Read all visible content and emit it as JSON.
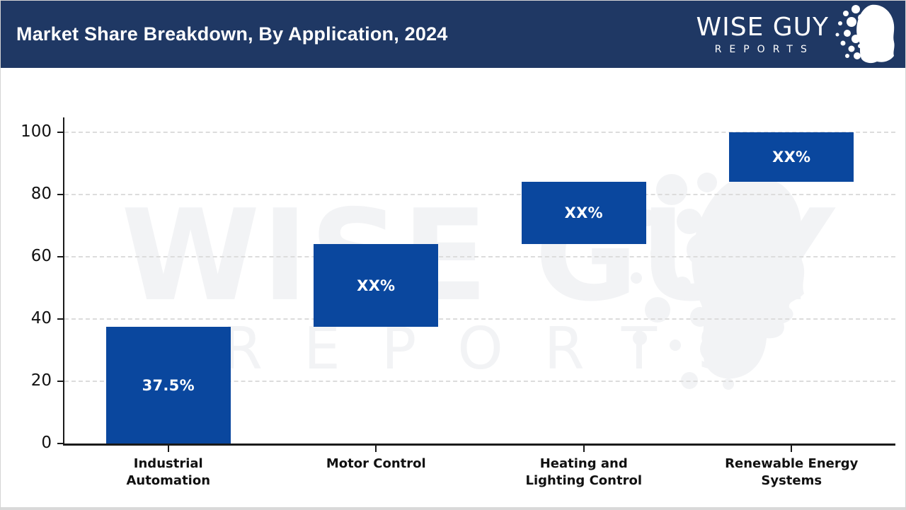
{
  "header": {
    "title": "Market Share Breakdown, By Application, 2024",
    "bg_color": "#1F3864",
    "logo": {
      "name": "WISE GUY",
      "sub": "REPORTS"
    }
  },
  "watermark": {
    "line1": "WISE GUY",
    "line2": "REPORTS"
  },
  "chart_data": {
    "type": "bar",
    "variant": "waterfall-floating-bars",
    "title": "Market Share Breakdown, By Application, 2024",
    "categories": [
      "Industrial Automation",
      "Motor Control",
      "Heating and Lighting Control",
      "Renewable Energy Systems"
    ],
    "tick_label_lines": [
      [
        "Industrial",
        "Automation"
      ],
      [
        "Motor Control"
      ],
      [
        "Heating and",
        "Lighting Control"
      ],
      [
        "Renewable Energy",
        "Systems"
      ]
    ],
    "series": [
      {
        "name": "Market share (%)",
        "segments": [
          {
            "category": "Industrial Automation",
            "start": 0,
            "end": 37.5,
            "label": "37.5%"
          },
          {
            "category": "Motor Control",
            "start": 37.5,
            "end": 64,
            "label": "XX%"
          },
          {
            "category": "Heating and Lighting Control",
            "start": 64,
            "end": 84,
            "label": "XX%"
          },
          {
            "category": "Renewable Energy Systems",
            "start": 84,
            "end": 100,
            "label": "XX%"
          }
        ]
      }
    ],
    "xlabel": "",
    "ylabel": "",
    "yticks": [
      0,
      20,
      40,
      60,
      80,
      100
    ],
    "ylim": [
      0,
      105
    ],
    "grid": "horizontal-dashed",
    "legend": "none",
    "bar_color": "#0A479E",
    "bar_label_color": "#FFFFFF",
    "axis_color": "#1a1a1a",
    "gridline_color": "#dcdcdc"
  }
}
